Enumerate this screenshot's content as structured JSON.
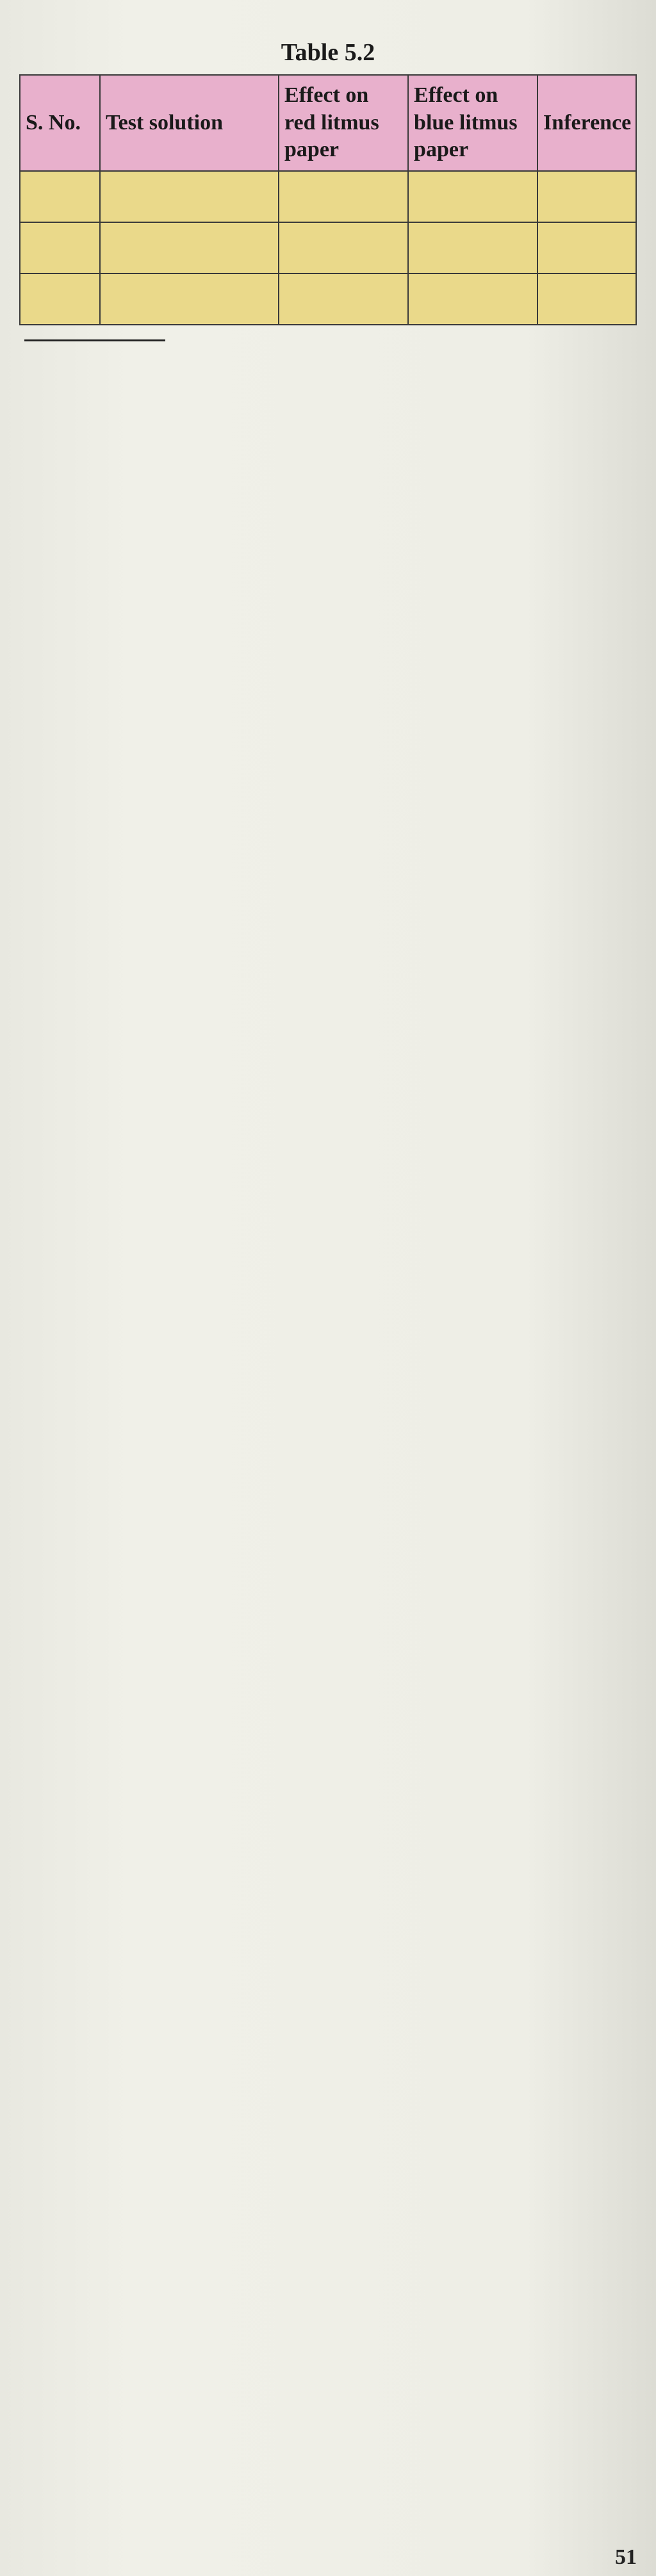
{
  "table": {
    "caption": "Table 5.2",
    "columns": [
      {
        "key": "sno",
        "label": "S. No.",
        "width_pct": 13
      },
      {
        "key": "test",
        "label": "Test solution",
        "width_pct": 29
      },
      {
        "key": "red",
        "label": "Effect on red litmus paper",
        "width_pct": 21
      },
      {
        "key": "blue",
        "label": "Effect on blue litmus paper",
        "width_pct": 21
      },
      {
        "key": "inf",
        "label": "Inference",
        "width_pct": 16
      }
    ],
    "rows": [
      {
        "sno": "",
        "test": "",
        "red": "",
        "blue": "",
        "inf": ""
      },
      {
        "sno": "",
        "test": "",
        "red": "",
        "blue": "",
        "inf": ""
      },
      {
        "sno": "",
        "test": "",
        "red": "",
        "blue": "",
        "inf": ""
      }
    ],
    "header_bg": "#e8b0cc",
    "body_bg": "#ead98a",
    "border_color": "#3a3a3a",
    "header_fontsize_pt": 34,
    "caption_fontsize_pt": 38
  },
  "page_number": "51"
}
